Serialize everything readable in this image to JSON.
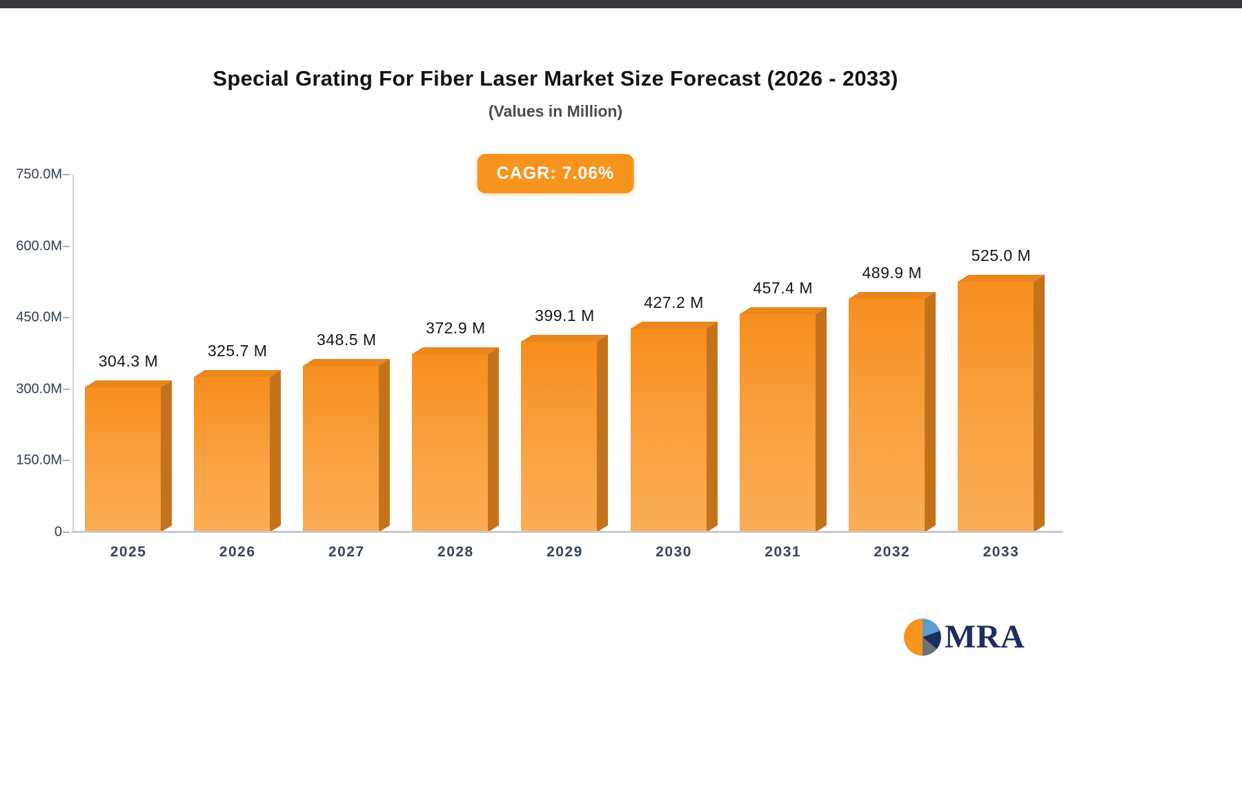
{
  "page": {
    "title": "Special Grating For Fiber Laser Market Size Forecast (2026 - 2033)",
    "subtitle": "(Values in Million)",
    "cagr_badge": "CAGR: 7.06%"
  },
  "chart_data": {
    "type": "bar",
    "title": "Special Grating For Fiber Laser Market Size Forecast (2026 - 2033)",
    "subtitle": "(Values in Million)",
    "unit": "Million",
    "categories": [
      "2025",
      "2026",
      "2027",
      "2028",
      "2029",
      "2030",
      "2031",
      "2032",
      "2033"
    ],
    "values": [
      304.3,
      325.7,
      348.5,
      372.9,
      399.1,
      427.2,
      457.4,
      489.9,
      525.0
    ],
    "value_labels": [
      "304.3 M",
      "325.7 M",
      "348.5 M",
      "372.9 M",
      "399.1 M",
      "427.2 M",
      "457.4 M",
      "489.9 M",
      "525.0 M"
    ],
    "ylim": [
      0,
      750
    ],
    "yticks": [
      {
        "value": 750,
        "label": "750.0M"
      },
      {
        "value": 600,
        "label": "600.0M"
      },
      {
        "value": 450,
        "label": "450.0M"
      },
      {
        "value": 300,
        "label": "300.0M"
      },
      {
        "value": 150,
        "label": "150.0M"
      },
      {
        "value": 0,
        "label": "0"
      }
    ],
    "grid": false,
    "legend": false,
    "bar_colors": {
      "front_top": "#f78e1d",
      "front_bottom": "#fbae55",
      "side": "#c4731c",
      "top": "#ea861e"
    }
  },
  "logo": {
    "text": "MRA",
    "colors": {
      "orange": "#f7941e",
      "navy": "#1c2e5e",
      "light_blue": "#5d9dc9",
      "gray": "#6e7277"
    }
  }
}
